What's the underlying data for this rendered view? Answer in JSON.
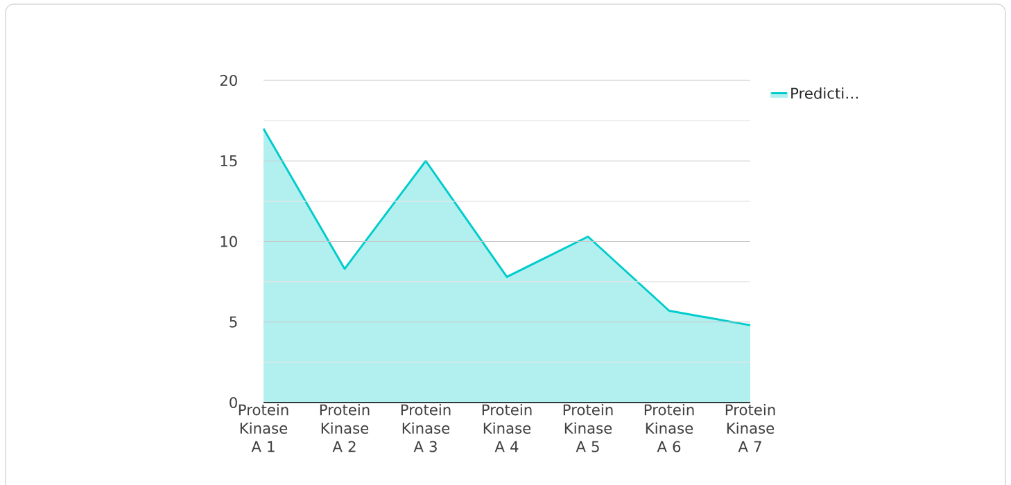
{
  "chart_data": {
    "type": "area",
    "categories": [
      "Protein Kinase A 1",
      "Protein Kinase A 2",
      "Protein Kinase A 3",
      "Protein Kinase A 4",
      "Protein Kinase A 5",
      "Protein Kinase A 6",
      "Protein Kinase A 7"
    ],
    "series": [
      {
        "name": "Predicti…",
        "color": "#00cccc",
        "values": [
          17,
          8.3,
          15,
          7.8,
          10.3,
          5.7,
          4.8
        ]
      }
    ],
    "ylim": [
      0,
      20
    ],
    "yticks": [
      0,
      {
        "value": 2.5,
        "label": null
      },
      5,
      {
        "value": 7.5,
        "label": null
      },
      10,
      {
        "value": 12.5,
        "label": null
      },
      15,
      {
        "value": 17.5,
        "label": null
      },
      20
    ],
    "grid": "y",
    "legend": "top right"
  }
}
